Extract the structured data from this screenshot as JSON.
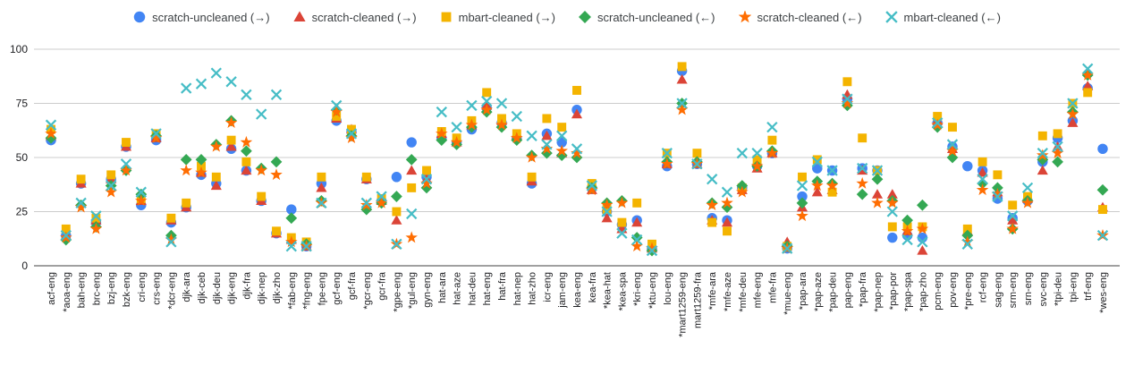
{
  "chart_data": {
    "type": "scatter",
    "title": "",
    "xlabel": "",
    "ylabel": "",
    "ylim": [
      0,
      100
    ],
    "yticks": [
      0,
      25,
      50,
      75,
      100
    ],
    "grid": true,
    "legend_position": "top",
    "categories": [
      "acf-eng",
      "*aoa-eng",
      "bah-eng",
      "brc-eng",
      "bzj-eng",
      "bzk-eng",
      "cri-eng",
      "crs-eng",
      "*dcr-eng",
      "djk-ara",
      "djk-ceb",
      "djk-deu",
      "djk-eng",
      "djk-fra",
      "djk-nep",
      "djk-zho",
      "*fab-eng",
      "*fng-eng",
      "fpe-eng",
      "gcf-eng",
      "gcf-fra",
      "*gcr-eng",
      "gcr-fra",
      "*gpe-eng",
      "*gul-eng",
      "gyn-eng",
      "hat-ara",
      "hat-aze",
      "hat-deu",
      "hat-eng",
      "hat-fra",
      "hat-nep",
      "hat-zho",
      "icr-eng",
      "jam-eng",
      "kea-eng",
      "kea-fra",
      "*kea-hat",
      "*kea-spa",
      "*kri-eng",
      "*ktu-eng",
      "lou-eng",
      "*mart1259-eng",
      "mart1259-fra",
      "*mfe-ara",
      "*mfe-aze",
      "*mfe-deu",
      "mfe-eng",
      "mfe-fra",
      "*mue-eng",
      "*pap-ara",
      "*pap-aze",
      "*pap-deu",
      "pap-eng",
      "*pap-fra",
      "*pap-nep",
      "*pap-por",
      "*pap-spa",
      "*pap-zho",
      "pcm-eng",
      "pov-eng",
      "*pre-eng",
      "rcf-eng",
      "sag-eng",
      "srm-eng",
      "srn-eng",
      "svc-eng",
      "*tpi-deu",
      "tpi-eng",
      "trf-eng",
      "*wes-eng"
    ],
    "series": [
      {
        "name": "scratch-uncleaned (→)",
        "marker": "circle",
        "color": "#4285F4",
        "values": [
          58,
          14,
          38,
          20,
          40,
          55,
          28,
          58,
          20,
          27,
          42,
          38,
          54,
          44,
          30,
          15,
          26,
          9,
          38,
          67,
          62,
          40,
          30,
          41,
          57,
          41,
          59,
          57,
          63,
          73,
          66,
          59,
          38,
          61,
          57,
          72,
          36,
          25,
          19,
          21,
          8,
          46,
          90,
          47,
          22,
          21,
          36,
          46,
          52,
          8,
          32,
          45,
          44,
          77,
          45,
          44,
          13,
          14,
          13,
          66,
          55,
          46,
          44,
          31,
          22,
          30,
          48,
          59,
          67,
          82,
          54
        ]
      },
      {
        "name": "scratch-cleaned (→)",
        "marker": "triangle",
        "color": "#DB4437",
        "values": [
          60,
          14,
          38,
          21,
          40,
          55,
          30,
          59,
          21,
          27,
          43,
          37,
          55,
          44,
          30,
          15,
          12,
          9,
          36,
          68,
          63,
          40,
          30,
          21,
          44,
          40,
          61,
          57,
          65,
          74,
          67,
          60,
          39,
          60,
          52,
          70,
          35,
          22,
          17,
          20,
          8,
          47,
          86,
          47,
          21,
          20,
          35,
          45,
          52,
          11,
          27,
          34,
          35,
          79,
          44,
          33,
          33,
          16,
          7,
          67,
          54,
          16,
          43,
          34,
          21,
          31,
          44,
          55,
          66,
          83,
          27
        ]
      },
      {
        "name": "mbart-cleaned (→)",
        "marker": "square",
        "color": "#F4B400",
        "values": [
          63,
          17,
          40,
          22,
          42,
          57,
          31,
          61,
          22,
          29,
          46,
          41,
          58,
          48,
          32,
          16,
          13,
          11,
          41,
          69,
          63,
          41,
          31,
          25,
          36,
          44,
          62,
          59,
          67,
          80,
          68,
          61,
          41,
          68,
          64,
          81,
          38,
          26,
          20,
          29,
          10,
          52,
          92,
          52,
          20,
          16,
          36,
          49,
          58,
          9,
          41,
          49,
          34,
          85,
          59,
          44,
          18,
          18,
          18,
          69,
          64,
          17,
          48,
          42,
          28,
          32,
          60,
          61,
          75,
          80,
          26
        ]
      },
      {
        "name": "scratch-uncleaned (←)",
        "marker": "diamond",
        "color": "#34A853",
        "values": [
          59,
          12,
          28,
          18,
          37,
          44,
          33,
          60,
          14,
          49,
          49,
          56,
          67,
          53,
          45,
          48,
          22,
          10,
          30,
          72,
          60,
          26,
          29,
          32,
          49,
          36,
          58,
          56,
          64,
          71,
          64,
          58,
          51,
          52,
          51,
          50,
          36,
          29,
          30,
          13,
          7,
          48,
          75,
          48,
          29,
          27,
          37,
          46,
          53,
          9,
          29,
          39,
          38,
          74,
          33,
          40,
          30,
          21,
          28,
          64,
          50,
          14,
          38,
          36,
          17,
          30,
          49,
          48,
          71,
          88,
          35
        ]
      },
      {
        "name": "scratch-cleaned (←)",
        "marker": "star",
        "color": "#FF6D01",
        "values": [
          61,
          13,
          27,
          17,
          34,
          44,
          30,
          59,
          12,
          44,
          43,
          55,
          66,
          57,
          44,
          42,
          11,
          9,
          29,
          71,
          59,
          28,
          29,
          10,
          13,
          38,
          61,
          57,
          65,
          72,
          65,
          59,
          50,
          54,
          53,
          52,
          35,
          28,
          29,
          9,
          8,
          47,
          72,
          47,
          28,
          29,
          34,
          46,
          52,
          8,
          23,
          37,
          37,
          75,
          38,
          29,
          29,
          16,
          17,
          65,
          53,
          11,
          35,
          33,
          17,
          29,
          51,
          52,
          70,
          88,
          14
        ]
      },
      {
        "name": "mbart-cleaned (←)",
        "marker": "x",
        "color": "#46BDC6",
        "values": [
          65,
          14,
          29,
          23,
          37,
          47,
          34,
          61,
          11,
          82,
          84,
          89,
          85,
          79,
          70,
          79,
          9,
          9,
          29,
          74,
          61,
          29,
          32,
          10,
          24,
          40,
          71,
          64,
          74,
          76,
          75,
          69,
          60,
          56,
          60,
          54,
          37,
          25,
          15,
          12,
          7,
          52,
          75,
          47,
          40,
          34,
          52,
          52,
          64,
          8,
          37,
          48,
          44,
          77,
          45,
          44,
          25,
          12,
          11,
          66,
          56,
          10,
          40,
          32,
          23,
          36,
          52,
          55,
          75,
          91,
          14
        ]
      }
    ]
  }
}
